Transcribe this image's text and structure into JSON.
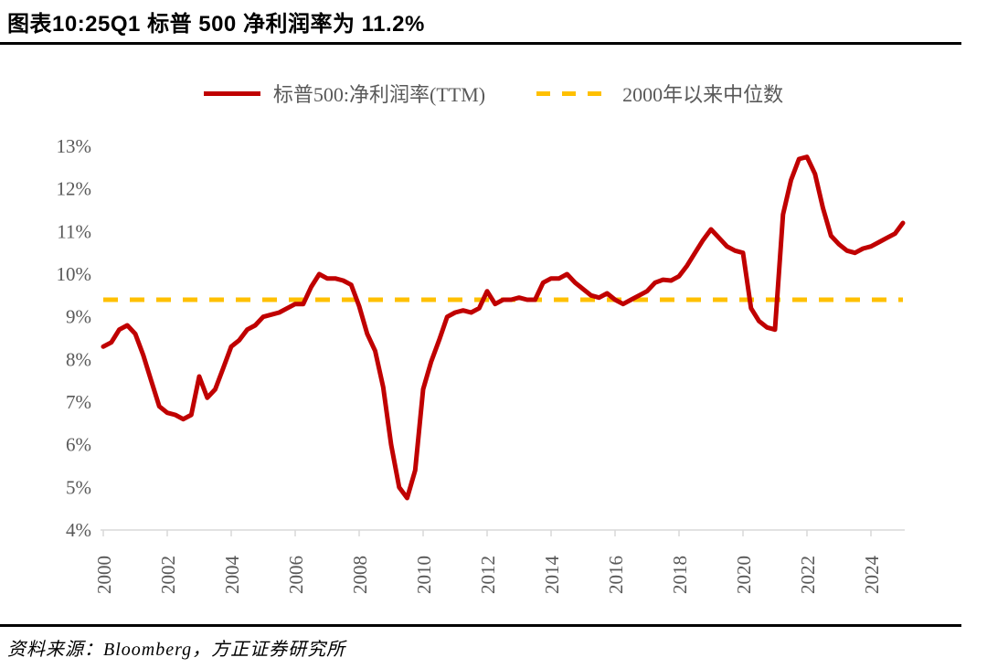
{
  "page": {
    "title": "图表10:25Q1 标普 500 净利润率为 11.2%",
    "source": "资料来源：Bloomberg，方正证券研究所"
  },
  "colors": {
    "series_line": "#C00000",
    "median_line": "#FFC000",
    "axis_text": "#595959",
    "axis_line": "#D9D9D9",
    "title_text": "#000000"
  },
  "chart_data": {
    "type": "line",
    "title": "25Q1 标普 500 净利润率为 11.2%",
    "x_periods": "2000Q1-2025Q1 quarterly",
    "x_start": 2000,
    "x_step": 0.25,
    "xlim": [
      2000,
      2025
    ],
    "ylim": [
      4,
      13
    ],
    "grid": false,
    "legend_position": "top",
    "xtick_rotation": -90,
    "xticks": [
      "2000",
      "2002",
      "2004",
      "2006",
      "2008",
      "2010",
      "2012",
      "2014",
      "2016",
      "2018",
      "2020",
      "2022",
      "2024"
    ],
    "yticks": [
      "13%",
      "12%",
      "11%",
      "10%",
      "9%",
      "8%",
      "7%",
      "6%",
      "5%",
      "4%"
    ],
    "series": [
      {
        "name": "标普500:净利润率(TTM)",
        "color": "#C00000",
        "style": "solid",
        "values": [
          8.3,
          8.4,
          8.7,
          8.8,
          8.6,
          8.1,
          7.5,
          6.9,
          6.75,
          6.7,
          6.6,
          6.7,
          7.6,
          7.1,
          7.3,
          7.8,
          8.3,
          8.45,
          8.7,
          8.8,
          9.0,
          9.05,
          9.1,
          9.2,
          9.3,
          9.3,
          9.7,
          10.0,
          9.9,
          9.9,
          9.85,
          9.75,
          9.25,
          8.6,
          8.2,
          7.35,
          6.0,
          5.0,
          4.75,
          5.4,
          7.3,
          7.95,
          8.45,
          9.0,
          9.1,
          9.15,
          9.1,
          9.2,
          9.6,
          9.3,
          9.4,
          9.4,
          9.45,
          9.4,
          9.4,
          9.8,
          9.9,
          9.9,
          10.0,
          9.8,
          9.65,
          9.5,
          9.45,
          9.55,
          9.4,
          9.3,
          9.4,
          9.5,
          9.6,
          9.8,
          9.87,
          9.85,
          9.95,
          10.2,
          10.5,
          10.8,
          11.05,
          10.85,
          10.65,
          10.55,
          10.5,
          9.2,
          8.9,
          8.75,
          8.7,
          11.4,
          12.2,
          12.7,
          12.75,
          12.35,
          11.55,
          10.9,
          10.7,
          10.55,
          10.5,
          10.6,
          10.65,
          10.75,
          10.85,
          10.95,
          11.2
        ]
      },
      {
        "name": "2000年以来中位数",
        "color": "#FFC000",
        "style": "dashed",
        "value": 9.4
      }
    ]
  }
}
